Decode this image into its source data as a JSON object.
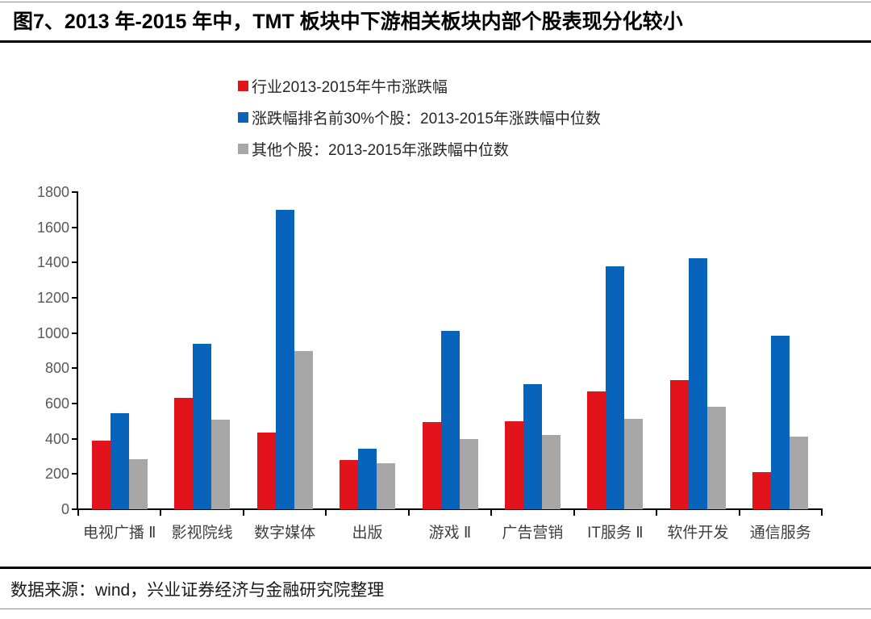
{
  "title": "图7、2013 年-2015 年中，TMT 板块中下游相关板块内部个股表现分化较小",
  "legend": {
    "items": [
      {
        "label": "行业2013-2015年牛市涨跌幅",
        "color": "#e3131b"
      },
      {
        "label": "涨跌幅排名前30%个股：2013-2015年涨跌幅中位数",
        "color": "#0863ba"
      },
      {
        "label": "其他个股：2013-2015年涨跌幅中位数",
        "color": "#a7a7a7"
      }
    ]
  },
  "chart_data": {
    "type": "bar",
    "title": "",
    "xlabel": "",
    "ylabel": "",
    "categories": [
      "电视广播 Ⅱ",
      "影视院线",
      "数字媒体",
      "出版",
      "游戏 Ⅱ",
      "广告营销",
      "IT服务 Ⅱ",
      "软件开发",
      "通信服务"
    ],
    "series": [
      {
        "name": "行业2013-2015年牛市涨跌幅",
        "color": "#e3131b",
        "values": [
          390,
          630,
          435,
          280,
          495,
          500,
          670,
          735,
          210
        ]
      },
      {
        "name": "涨跌幅排名前30%个股：2013-2015年涨跌幅中位数",
        "color": "#0863ba",
        "values": [
          545,
          940,
          1700,
          345,
          1010,
          710,
          1380,
          1425,
          985
        ]
      },
      {
        "name": "其他个股：2013-2015年涨跌幅中位数",
        "color": "#a7a7a7",
        "values": [
          285,
          510,
          900,
          260,
          400,
          420,
          515,
          580,
          410
        ]
      }
    ],
    "ylim": [
      0,
      1800
    ],
    "yticks": [
      0,
      200,
      400,
      600,
      800,
      1000,
      1200,
      1400,
      1600,
      1800
    ],
    "grid": false,
    "legend_position": "top"
  },
  "footer": {
    "source": "数据来源：wind，兴业证券经济与金融研究院整理"
  }
}
